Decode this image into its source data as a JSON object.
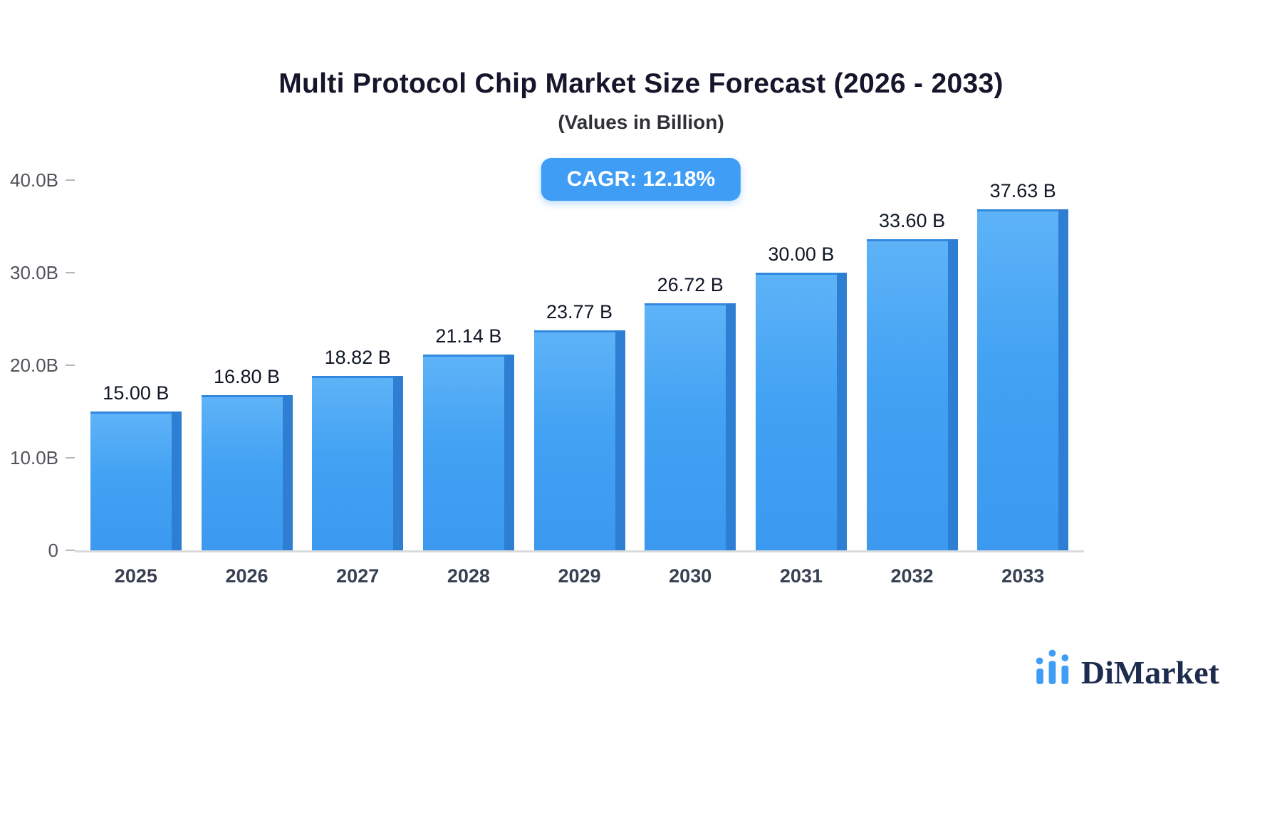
{
  "badge": {
    "label": "CAGR: 12.18%",
    "color": "#3F9DF5"
  },
  "logo": {
    "text": "DiMarket",
    "icon": "bar-chart-icon",
    "accent": "#3F9DF5",
    "text_color": "#1d2b4f"
  },
  "chart_data": {
    "type": "bar",
    "title": "Multi Protocol Chip Market Size Forecast (2026 - 2033)",
    "subtitle": "(Values in Billion)",
    "categories": [
      "2025",
      "2026",
      "2027",
      "2028",
      "2029",
      "2030",
      "2031",
      "2032",
      "2033"
    ],
    "values": [
      15.0,
      16.8,
      18.82,
      21.14,
      23.77,
      26.72,
      30.0,
      33.6,
      37.63
    ],
    "value_labels": [
      "15.00 B",
      "16.80 B",
      "18.82 B",
      "21.14 B",
      "23.77 B",
      "26.72 B",
      "30.00 B",
      "33.60 B",
      "37.63 B"
    ],
    "xlabel": "",
    "ylabel": "",
    "ylim": [
      0,
      40
    ],
    "yticks": [
      {
        "label": "0",
        "value": 0
      },
      {
        "label": "10.0B",
        "value": 10
      },
      {
        "label": "20.0B",
        "value": 20
      },
      {
        "label": "30.0B",
        "value": 30
      },
      {
        "label": "40.0B",
        "value": 40
      }
    ],
    "grid": "off",
    "legend": "none",
    "bar_color": "#42A1F3",
    "bar_side_color": "#2E7FD3"
  }
}
